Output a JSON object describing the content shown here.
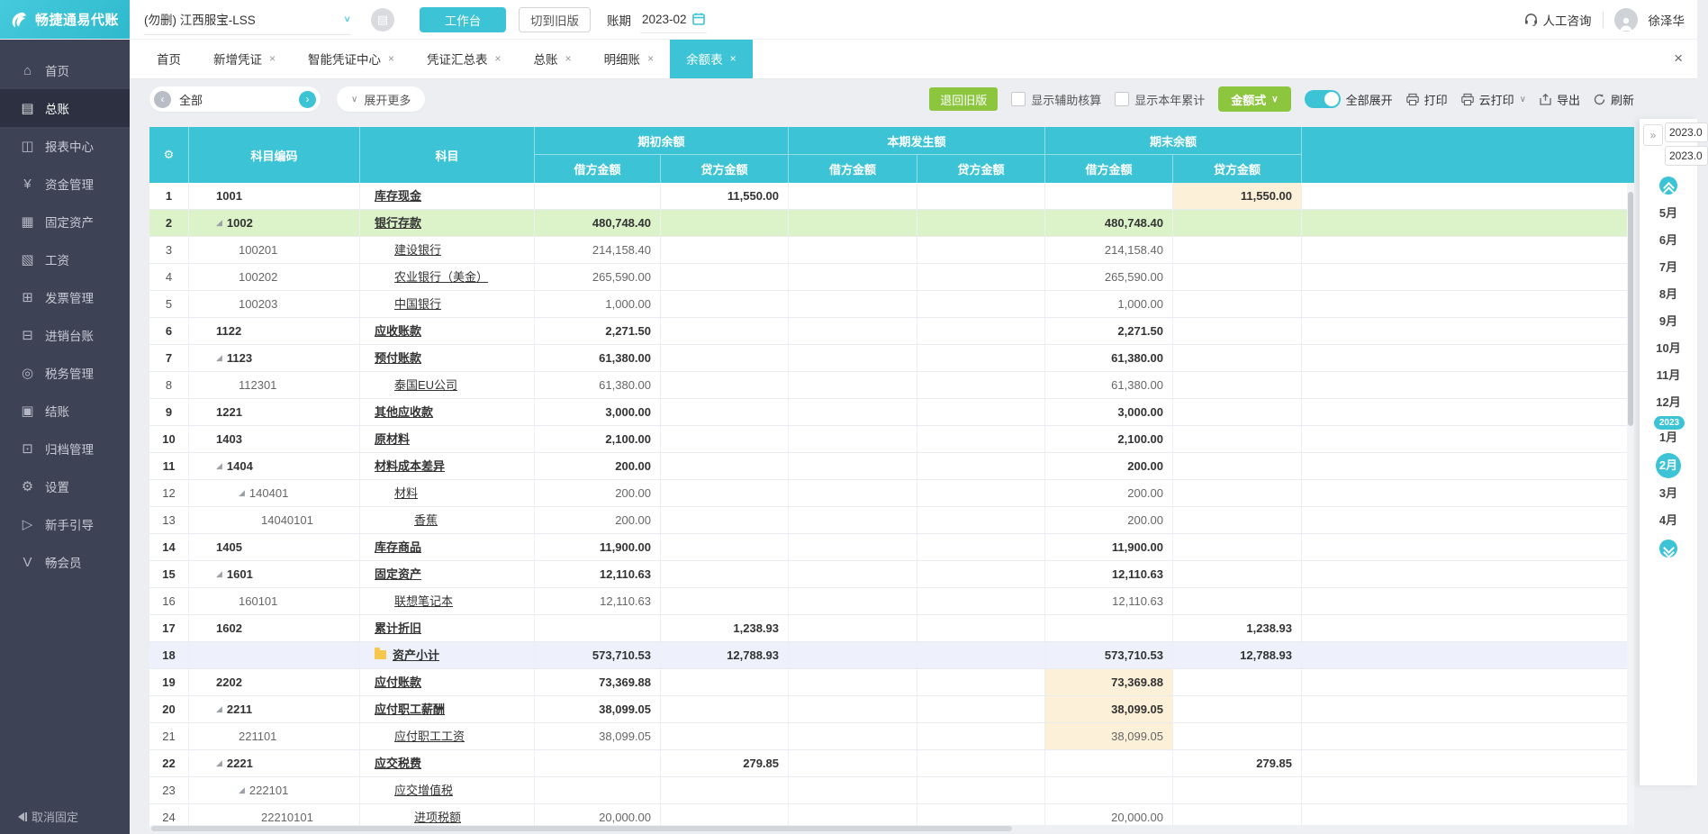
{
  "topbar": {
    "logo_text": "畅捷通易代账",
    "company": "(勿删) 江西服宝-LSS",
    "workbench": "工作台",
    "switch_old": "切到旧版",
    "period_label": "账期",
    "period_value": "2023-02",
    "support": "人工咨询",
    "user": "徐泽华"
  },
  "sidebar": {
    "items": [
      {
        "label": "首页",
        "icon": "home",
        "active": false
      },
      {
        "label": "总账",
        "icon": "ledger",
        "active": true
      },
      {
        "label": "报表中心",
        "icon": "report",
        "active": false
      },
      {
        "label": "资金管理",
        "icon": "funds",
        "active": false
      },
      {
        "label": "固定资产",
        "icon": "asset",
        "active": false
      },
      {
        "label": "工资",
        "icon": "salary",
        "active": false
      },
      {
        "label": "发票管理",
        "icon": "invoice",
        "active": false
      },
      {
        "label": "进销台账",
        "icon": "trade",
        "active": false
      },
      {
        "label": "税务管理",
        "icon": "tax",
        "active": false
      },
      {
        "label": "结账",
        "icon": "closing",
        "active": false
      },
      {
        "label": "归档管理",
        "icon": "archive",
        "active": false
      },
      {
        "label": "设置",
        "icon": "settings",
        "active": false
      },
      {
        "label": "新手引导",
        "icon": "guide",
        "active": false
      },
      {
        "label": "畅会员",
        "icon": "vip",
        "active": false
      }
    ],
    "unpin": "取消固定"
  },
  "tabs": {
    "items": [
      {
        "label": "首页",
        "closable": false,
        "active": false
      },
      {
        "label": "新增凭证",
        "closable": true,
        "active": false
      },
      {
        "label": "智能凭证中心",
        "closable": true,
        "active": false
      },
      {
        "label": "凭证汇总表",
        "closable": true,
        "active": false
      },
      {
        "label": "总账",
        "closable": true,
        "active": false
      },
      {
        "label": "明细账",
        "closable": true,
        "active": false
      },
      {
        "label": "余额表",
        "closable": true,
        "active": true
      }
    ]
  },
  "toolbar": {
    "filter_all": "全部",
    "expand_more": "展开更多",
    "back_old": "退回旧版",
    "show_aux": "显示辅助核算",
    "show_ytd": "显示本年累计",
    "amount_style": "金额式",
    "expand_all": "全部展开",
    "print": "打印",
    "cloud_print": "云打印",
    "export": "导出",
    "refresh": "刷新"
  },
  "table": {
    "header": {
      "code": "科目编码",
      "subject": "科目",
      "groups": [
        "期初余额",
        "本期发生额",
        "期末余额"
      ],
      "debit": "借方金额",
      "credit": "贷方金额"
    },
    "rows": [
      {
        "no": "1",
        "code": "1001",
        "level": 1,
        "tri": false,
        "bold": true,
        "name": "库存现金",
        "cells": {
          "qcd": "11,550.00",
          "qmd": "11,550.00"
        },
        "hl": [
          "qmd"
        ]
      },
      {
        "no": "2",
        "code": "1002",
        "level": 1,
        "tri": true,
        "bold": true,
        "name": "银行存款",
        "bg": "green",
        "cells": {
          "qcj": "480,748.40",
          "qmj": "480,748.40"
        }
      },
      {
        "no": "3",
        "code": "100201",
        "level": 2,
        "tri": false,
        "bold": false,
        "name": "建设银行",
        "cells": {
          "qcj": "214,158.40",
          "qmj": "214,158.40"
        }
      },
      {
        "no": "4",
        "code": "100202",
        "level": 2,
        "tri": false,
        "bold": false,
        "name": "农业银行（美金）",
        "cells": {
          "qcj": "265,590.00",
          "qmj": "265,590.00"
        }
      },
      {
        "no": "5",
        "code": "100203",
        "level": 2,
        "tri": false,
        "bold": false,
        "name": "中国银行",
        "cells": {
          "qcj": "1,000.00",
          "qmj": "1,000.00"
        }
      },
      {
        "no": "6",
        "code": "1122",
        "level": 1,
        "tri": false,
        "bold": true,
        "name": "应收账款",
        "cells": {
          "qcj": "2,271.50",
          "qmj": "2,271.50"
        }
      },
      {
        "no": "7",
        "code": "1123",
        "level": 1,
        "tri": true,
        "bold": true,
        "name": "预付账款",
        "cells": {
          "qcj": "61,380.00",
          "qmj": "61,380.00"
        }
      },
      {
        "no": "8",
        "code": "112301",
        "level": 2,
        "tri": false,
        "bold": false,
        "name": "泰国EU公司",
        "cells": {
          "qcj": "61,380.00",
          "qmj": "61,380.00"
        }
      },
      {
        "no": "9",
        "code": "1221",
        "level": 1,
        "tri": false,
        "bold": true,
        "name": "其他应收款",
        "cells": {
          "qcj": "3,000.00",
          "qmj": "3,000.00"
        }
      },
      {
        "no": "10",
        "code": "1403",
        "level": 1,
        "tri": false,
        "bold": true,
        "name": "原材料",
        "cells": {
          "qcj": "2,100.00",
          "qmj": "2,100.00"
        }
      },
      {
        "no": "11",
        "code": "1404",
        "level": 1,
        "tri": true,
        "bold": true,
        "name": "材料成本差异",
        "cells": {
          "qcj": "200.00",
          "qmj": "200.00"
        }
      },
      {
        "no": "12",
        "code": "140401",
        "level": 2,
        "tri": true,
        "bold": false,
        "name": "材料",
        "cells": {
          "qcj": "200.00",
          "qmj": "200.00"
        }
      },
      {
        "no": "13",
        "code": "14040101",
        "level": 3,
        "tri": false,
        "bold": false,
        "name": "香蕉",
        "cells": {
          "qcj": "200.00",
          "qmj": "200.00"
        }
      },
      {
        "no": "14",
        "code": "1405",
        "level": 1,
        "tri": false,
        "bold": true,
        "name": "库存商品",
        "cells": {
          "qcj": "11,900.00",
          "qmj": "11,900.00"
        }
      },
      {
        "no": "15",
        "code": "1601",
        "level": 1,
        "tri": true,
        "bold": true,
        "name": "固定资产",
        "cells": {
          "qcj": "12,110.63",
          "qmj": "12,110.63"
        }
      },
      {
        "no": "16",
        "code": "160101",
        "level": 2,
        "tri": false,
        "bold": false,
        "name": "联想笔记本",
        "cells": {
          "qcj": "12,110.63",
          "qmj": "12,110.63"
        }
      },
      {
        "no": "17",
        "code": "1602",
        "level": 1,
        "tri": false,
        "bold": true,
        "name": "累计折旧",
        "cells": {
          "qcd": "1,238.93",
          "qmd": "1,238.93"
        }
      },
      {
        "no": "18",
        "code": "",
        "level": 1,
        "tri": false,
        "bold": true,
        "name": "资产小计",
        "icon": "folder",
        "bg": "sub",
        "cells": {
          "qcj": "573,710.53",
          "qcd": "12,788.93",
          "qmj": "573,710.53",
          "qmd": "12,788.93"
        }
      },
      {
        "no": "19",
        "code": "2202",
        "level": 1,
        "tri": false,
        "bold": true,
        "name": "应付账款",
        "cells": {
          "qcj": "73,369.88",
          "qmj": "73,369.88"
        },
        "hl": [
          "qmj"
        ]
      },
      {
        "no": "20",
        "code": "2211",
        "level": 1,
        "tri": true,
        "bold": true,
        "name": "应付职工薪酬",
        "cells": {
          "qcj": "38,099.05",
          "qmj": "38,099.05"
        },
        "hl": [
          "qmj"
        ]
      },
      {
        "no": "21",
        "code": "221101",
        "level": 2,
        "tri": false,
        "bold": false,
        "name": "应付职工工资",
        "cells": {
          "qcj": "38,099.05",
          "qmj": "38,099.05"
        },
        "hl": [
          "qmj"
        ]
      },
      {
        "no": "22",
        "code": "2221",
        "level": 1,
        "tri": true,
        "bold": true,
        "name": "应交税费",
        "cells": {
          "qcd": "279.85",
          "qmd": "279.85"
        }
      },
      {
        "no": "23",
        "code": "222101",
        "level": 2,
        "tri": true,
        "bold": false,
        "name": "应交增值税",
        "cells": {}
      },
      {
        "no": "24",
        "code": "22210101",
        "level": 3,
        "tri": false,
        "bold": false,
        "name": "进项税额",
        "cells": {
          "qcj": "20,000.00",
          "qmj": "20,000.00"
        }
      }
    ]
  },
  "timeline": {
    "range_from": "2023.0",
    "range_to": "2023.0",
    "year_badge": "2023",
    "badge_before": "1月",
    "months": [
      "5月",
      "6月",
      "7月",
      "8月",
      "9月",
      "10月",
      "11月",
      "12月",
      "1月",
      "2月",
      "3月",
      "4月"
    ],
    "selected": "2月"
  },
  "colors": {
    "accent_cyan": "#3cc4d6",
    "button_green": "#8cc63f",
    "sidebar_bg": "#3d4255",
    "sidebar_active": "#2c3040",
    "row_green": "#dcf3c9",
    "row_subtotal": "#eef1fb",
    "cell_warning": "#fcf0d8"
  }
}
